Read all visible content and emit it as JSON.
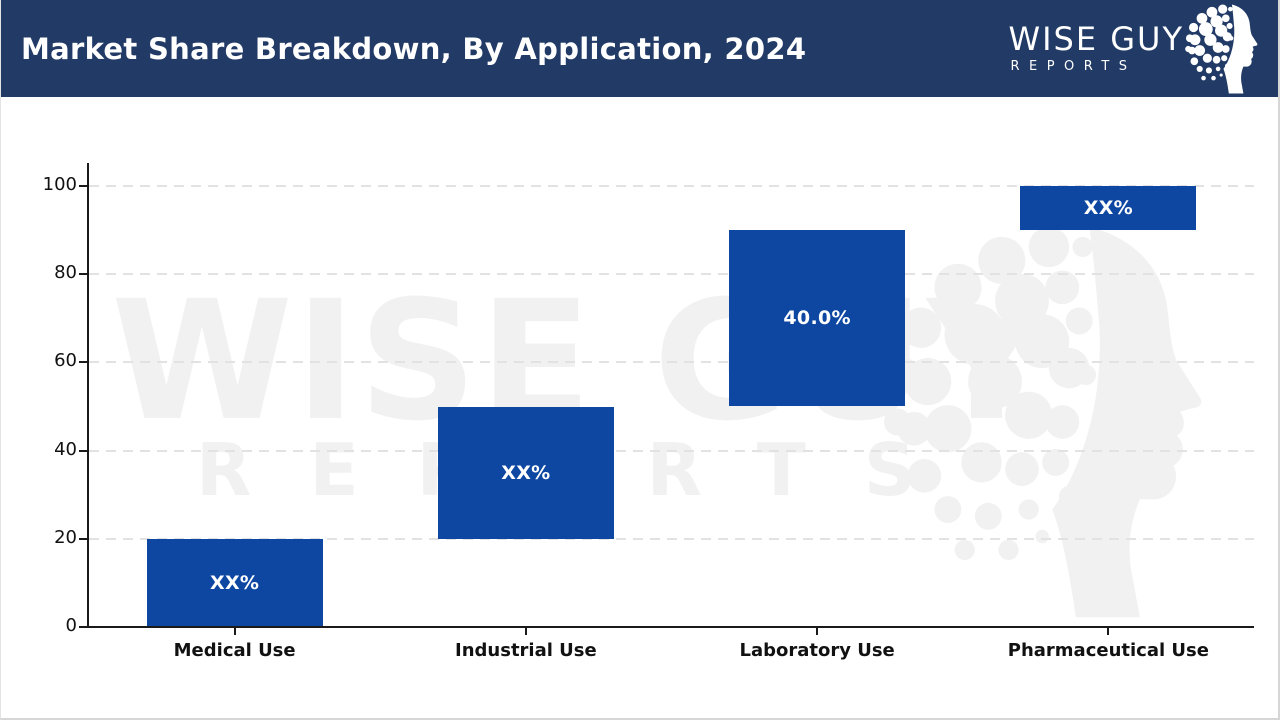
{
  "header": {
    "title": "Market Share Breakdown, By Application, 2024",
    "logo": {
      "line1": "WISE GUY",
      "line2": "REPORTS"
    },
    "bg_color": "#213a66",
    "text_color": "#ffffff"
  },
  "watermark": {
    "line1": "WISE GUY",
    "line2": "REPORTS",
    "color": "#f1f1f1"
  },
  "chart_data": {
    "type": "bar",
    "variant": "floating-bar-waterfall",
    "title": "Market Share Breakdown, By Application, 2024",
    "categories": [
      "Medical Use",
      "Industrial Use",
      "Laboratory Use",
      "Pharmaceutical Use"
    ],
    "series": [
      {
        "name": "Market share (%)",
        "bars": [
          {
            "category": "Medical Use",
            "start": 0,
            "end": 20,
            "label": "XX%"
          },
          {
            "category": "Industrial Use",
            "start": 20,
            "end": 50,
            "label": "XX%"
          },
          {
            "category": "Laboratory Use",
            "start": 50,
            "end": 90,
            "label": "40.0%"
          },
          {
            "category": "Pharmaceutical Use",
            "start": 90,
            "end": 100,
            "label": "XX%"
          }
        ]
      }
    ],
    "xlabel": "",
    "ylabel": "",
    "ylim": [
      0,
      105
    ],
    "yticks": [
      0,
      20,
      40,
      60,
      80,
      100
    ],
    "grid": {
      "axis": "y",
      "style": "dashed",
      "color": "#e2e2e2"
    },
    "axis_color": "#1a1a1a",
    "tick_label_color": "#111111",
    "bar_color": "#0d47a1",
    "bar_label_color": "#ffffff",
    "legend": "none"
  }
}
